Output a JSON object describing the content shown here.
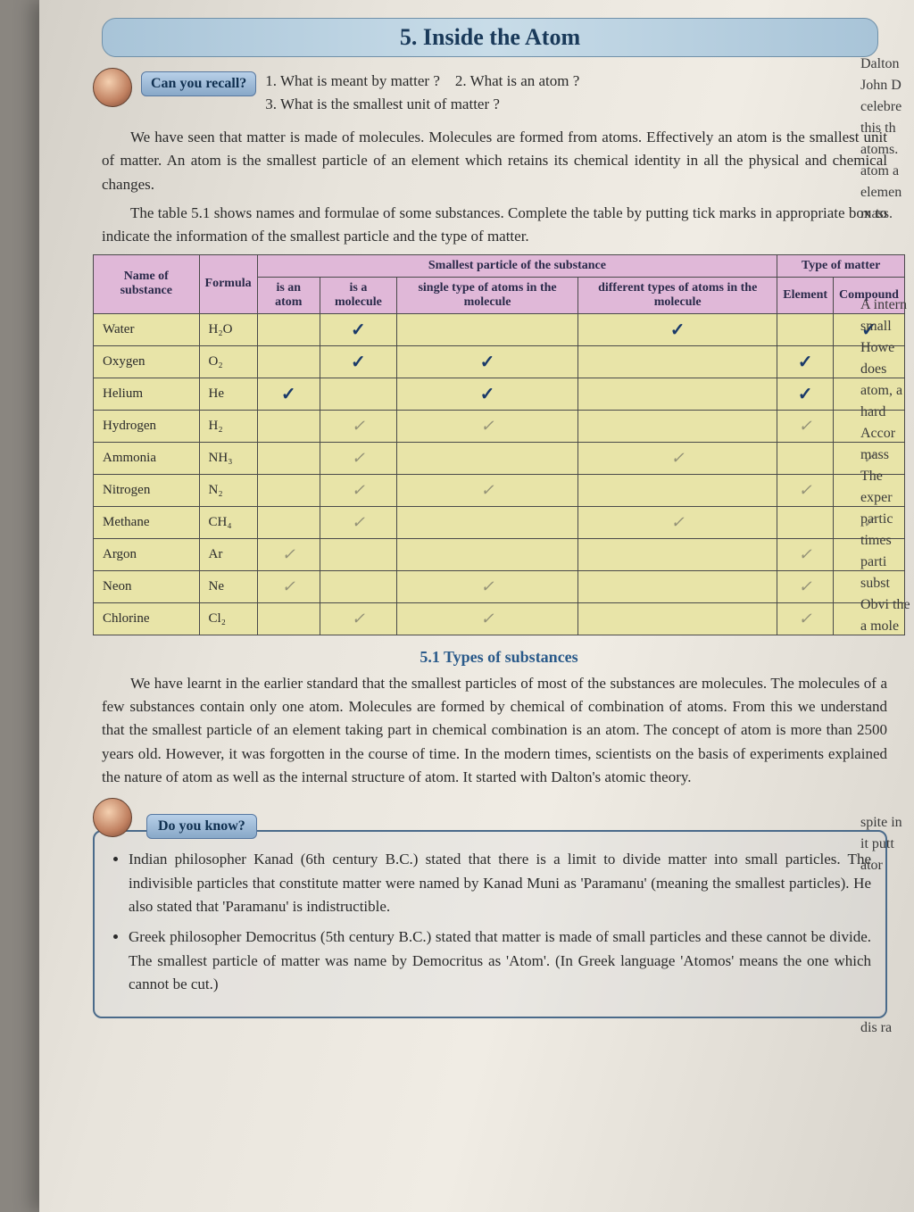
{
  "title": "5. Inside the Atom",
  "recall": {
    "badge": "Can you recall?",
    "q1": "1. What is meant by matter ?",
    "q2": "2. What is an atom ?",
    "q3": "3. What is the smallest unit of matter ?"
  },
  "intro": {
    "p1": "We have seen that matter is made of molecules. Molecules are formed from atoms. Effectively an atom is the smallest unit of matter. An atom is the smallest particle of an element which retains its chemical identity in all the physical and chemical changes.",
    "p2": "The table 5.1 shows names and formulae of some substances. Complete the table by putting tick marks in appropriate box to indicate the information of the smallest particle and the type of matter."
  },
  "table": {
    "headers": {
      "name": "Name of substance",
      "formula": "Formula",
      "group_particle": "Smallest particle of the substance",
      "group_type": "Type of matter",
      "atom": "is an atom",
      "molecule": "is a molecule",
      "single": "single type of atoms in the molecule",
      "diff": "different types of atoms in the molecule",
      "element": "Element",
      "compound": "Compound"
    },
    "rows": [
      {
        "name": "Water",
        "formula": "H₂O",
        "atom": "",
        "molecule": "tick",
        "single": "",
        "diff": "tick",
        "element": "",
        "compound": "tick"
      },
      {
        "name": "Oxygen",
        "formula": "O₂",
        "atom": "",
        "molecule": "tick",
        "single": "tick",
        "diff": "",
        "element": "tick",
        "compound": ""
      },
      {
        "name": "Helium",
        "formula": "He",
        "atom": "tick",
        "molecule": "",
        "single": "tick",
        "diff": "",
        "element": "tick",
        "compound": ""
      },
      {
        "name": "Hydrogen",
        "formula": "H₂",
        "atom": "",
        "molecule": "pencil",
        "single": "pencil",
        "diff": "",
        "element": "pencil",
        "compound": ""
      },
      {
        "name": "Ammonia",
        "formula": "NH₃",
        "atom": "",
        "molecule": "pencil",
        "single": "",
        "diff": "pencil",
        "element": "",
        "compound": "pencil"
      },
      {
        "name": "Nitrogen",
        "formula": "N₂",
        "atom": "",
        "molecule": "pencil",
        "single": "pencil",
        "diff": "",
        "element": "pencil",
        "compound": ""
      },
      {
        "name": "Methane",
        "formula": "CH₄",
        "atom": "",
        "molecule": "pencil",
        "single": "",
        "diff": "pencil",
        "element": "",
        "compound": "pencil"
      },
      {
        "name": "Argon",
        "formula": "Ar",
        "atom": "pencil",
        "molecule": "",
        "single": "",
        "diff": "",
        "element": "pencil",
        "compound": ""
      },
      {
        "name": "Neon",
        "formula": "Ne",
        "atom": "pencil",
        "molecule": "",
        "single": "pencil",
        "diff": "",
        "element": "pencil",
        "compound": ""
      },
      {
        "name": "Chlorine",
        "formula": "Cl₂",
        "atom": "",
        "molecule": "pencil",
        "single": "pencil",
        "diff": "",
        "element": "pencil",
        "compound": ""
      }
    ]
  },
  "section51": {
    "heading": "5.1 Types of substances",
    "text": "We have learnt in the earlier standard that the smallest particles of most of the substances are molecules. The molecules of a few substances contain only one atom. Molecules are formed by chemical of combination of atoms. From this we understand that the smallest particle of an element taking part in chemical combination is an atom. The concept of atom is more than 2500 years old. However, it was forgotten in the course of time. In the modern times, scientists on the basis of experiments explained the nature of atom as well as the internal structure of atom. It started with Dalton's atomic theory."
  },
  "know": {
    "badge": "Do you know?",
    "b1": "Indian philosopher Kanad (6th century B.C.) stated that there is a limit to divide matter into small particles. The indivisible particles that constitute matter were named by Kanad Muni as 'Paramanu' (meaning the smallest particles). He also stated that 'Paramanu' is indistructible.",
    "b2": "Greek philosopher Democritus (5th century B.C.) stated that matter is made of small particles and these cannot be divide. The smallest particle of matter was name by Democritus as 'Atom'. (In Greek language 'Atomos' means the one which cannot be cut.)"
  },
  "edge": {
    "e1": "Dalton John D celebre this th atoms. atom a elemen mass.",
    "e2": "A intern small Howe does atom, a hard Accor mass The exper partic times parti subst Obvi the a mole",
    "e3": "spite in it putt ator",
    "e4": "dis ra"
  },
  "marks": {
    "tick": "✓",
    "pencil": "✓"
  }
}
